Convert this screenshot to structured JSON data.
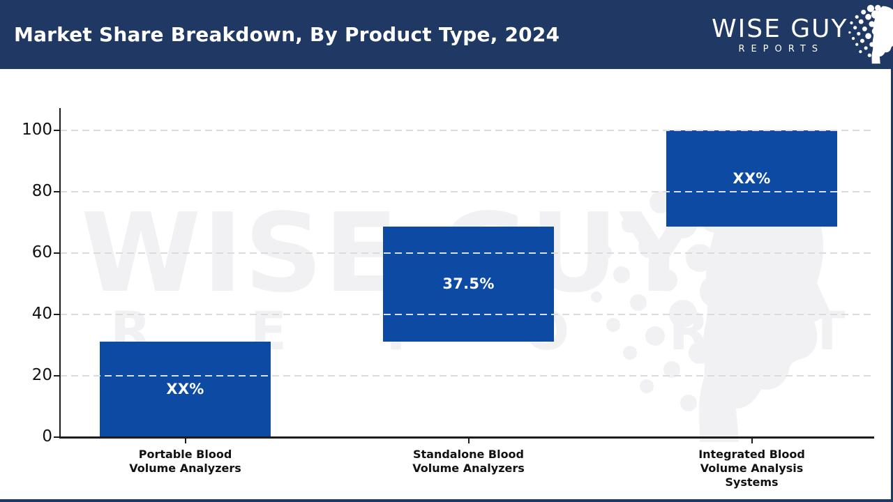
{
  "header": {
    "title": "Market Share Breakdown, By Product Type, 2024",
    "logo": {
      "line1": "WISE GUY",
      "line2": "REPORTS"
    }
  },
  "watermark": {
    "line1": "WISE GUY",
    "line2": "REPORTS"
  },
  "colors": {
    "header_bg": "#1f3864",
    "frame_border": "#1f3864",
    "bar": "#0c4aa4",
    "bar_label": "#ffffff",
    "grid": "#dcdcdc",
    "axis": "#1c1c1c",
    "watermark": "#f1f1f3"
  },
  "chart_data": {
    "type": "bar",
    "variant": "floating-segment-waterfall",
    "title": "Market Share Breakdown, By Product Type, 2024",
    "categories": [
      [
        "Portable Blood",
        "Volume Analyzers"
      ],
      [
        "Standalone Blood",
        "Volume Analyzers"
      ],
      [
        "Integrated Blood",
        "Volume Analysis",
        "Systems"
      ]
    ],
    "segments": [
      {
        "start": 0,
        "end": 31.25,
        "label": "XX%"
      },
      {
        "start": 31.25,
        "end": 68.75,
        "label": "37.5%"
      },
      {
        "start": 68.75,
        "end": 100,
        "label": "XX%"
      }
    ],
    "ylim": [
      0,
      100
    ],
    "yticks": [
      0,
      20,
      40,
      60,
      80,
      100
    ],
    "xlabel": "",
    "ylabel": "",
    "grid": {
      "horizontal": true,
      "style": "dashed",
      "drawn_over_bars": true
    },
    "legend": "none",
    "bar_color": "#0c4aa4",
    "bar_label_color": "#ffffff"
  }
}
